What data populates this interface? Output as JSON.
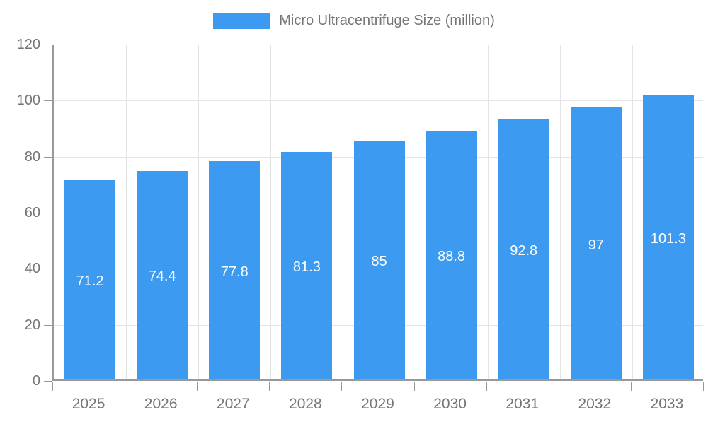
{
  "chart_data": {
    "type": "bar",
    "title": "",
    "legend": [
      "Micro Ultracentrifuge Size (million)"
    ],
    "legend_position": "top",
    "categories": [
      "2025",
      "2026",
      "2027",
      "2028",
      "2029",
      "2030",
      "2031",
      "2032",
      "2033"
    ],
    "values": [
      71.2,
      74.4,
      77.8,
      81.3,
      85,
      88.8,
      92.8,
      97,
      101.3
    ],
    "xlabel": "",
    "ylabel": "",
    "ylim": [
      0,
      120
    ],
    "yticks": [
      0,
      20,
      40,
      60,
      80,
      100,
      120
    ],
    "grid": true,
    "bar_color": "#3c9bf0",
    "bar_label_color": "#ffffff",
    "axis_text_color": "#757575",
    "axis_line_color": "#999999",
    "gridline_color": "#e4e4e4",
    "background_color": "#ffffff"
  }
}
